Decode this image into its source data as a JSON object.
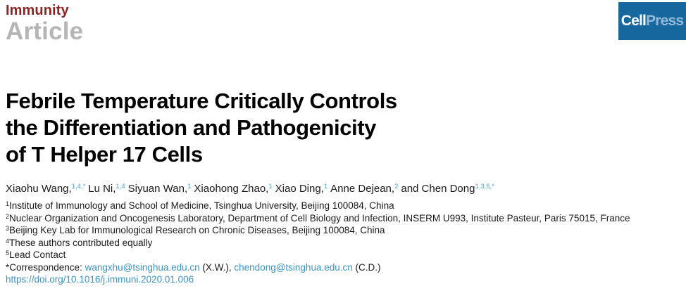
{
  "header": {
    "journal": "Immunity",
    "article_type": "Article",
    "logo": {
      "cell": "Cell",
      "press": "Press"
    }
  },
  "title": {
    "lines": [
      "Febrile Temperature Critically Controls",
      "the Differentiation and Pathogenicity",
      "of T Helper 17 Cells"
    ]
  },
  "authors": [
    {
      "name": "Xiaohu Wang,",
      "sup": "1,4,*"
    },
    {
      "name": "Lu Ni,",
      "sup": "1,4"
    },
    {
      "name": "Siyuan Wan,",
      "sup": "1"
    },
    {
      "name": "Xiaohong Zhao,",
      "sup": "1"
    },
    {
      "name": "Xiao Ding,",
      "sup": "1"
    },
    {
      "name": "Anne Dejean,",
      "sup": "2"
    },
    {
      "name": "and Chen Dong",
      "sup": "1,3,5,*"
    }
  ],
  "footnotes": [
    {
      "sup": "1",
      "text": "Institute of Immunology and School of Medicine, Tsinghua University, Beijing 100084, China"
    },
    {
      "sup": "2",
      "text": "Nuclear Organization and Oncogenesis Laboratory, Department of Cell Biology and Infection, INSERM U993, Institute Pasteur, Paris 75015, France"
    },
    {
      "sup": "3",
      "text": "Beijing Key Lab for Immunological Research on Chronic Diseases, Beijing 100084, China"
    },
    {
      "sup": "4",
      "text": "These authors contributed equally"
    },
    {
      "sup": "5",
      "text": "Lead Contact"
    }
  ],
  "correspondence": {
    "prefix": "*Correspondence: ",
    "email1": "wangxhu@tsinghua.edu.cn",
    "mid": " (X.W.), ",
    "email2": "chendong@tsinghua.edu.cn",
    "suffix": " (C.D.)"
  },
  "doi": "https://doi.org/10.1016/j.immuni.2020.01.006",
  "colors": {
    "journal_red": "#8e2423",
    "article_gray": "#b5b5b5",
    "link_blue": "#3b93c4",
    "author_sup_blue": "#4aa0c8",
    "logo_bg": "#16689e",
    "logo_press": "#93b9d8"
  }
}
